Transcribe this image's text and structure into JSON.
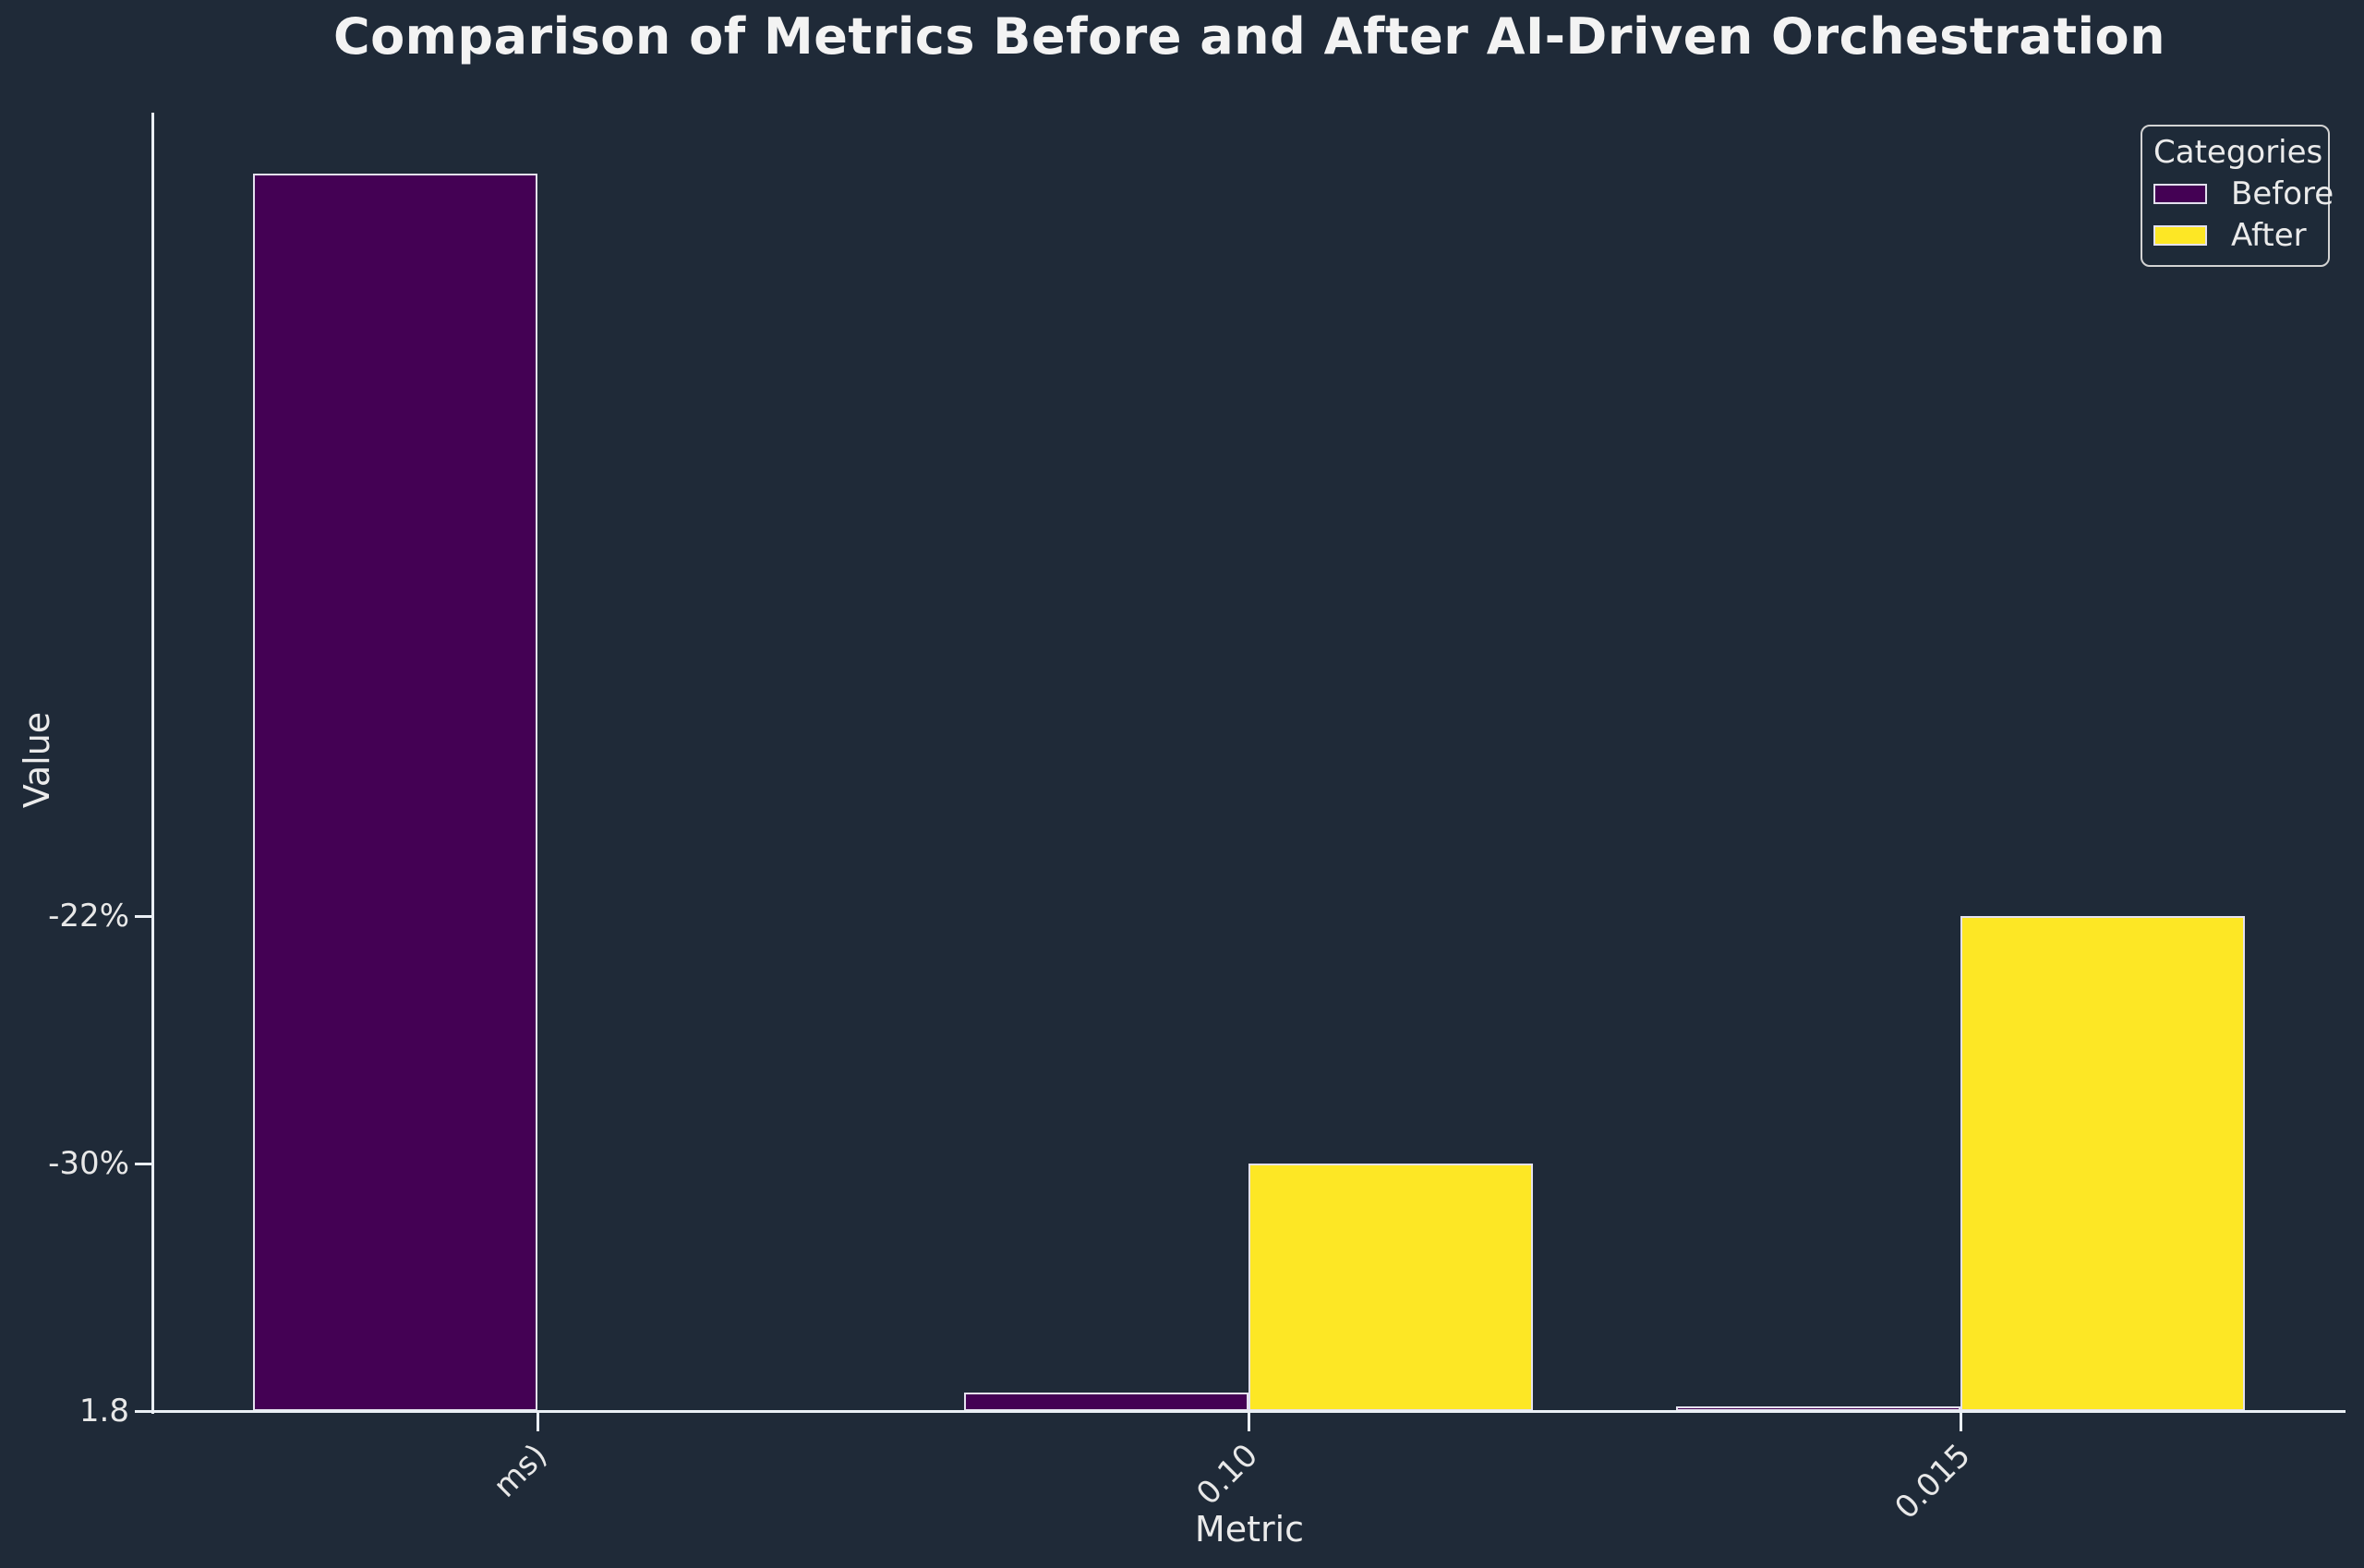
{
  "title": "Comparison of Metrics Before and After AI-Driven Orchestration",
  "legend": {
    "title": "Categories",
    "entries": [
      {
        "label": "Before",
        "color": "#440154"
      },
      {
        "label": "After",
        "color": "#fde725"
      }
    ]
  },
  "colors": {
    "background": "#1f2a38",
    "text": "#ebebeb",
    "axis_line": "#eaeff5",
    "bar_edge": "#e4e1ee",
    "before": "#440154",
    "after": "#fde725"
  },
  "chart_data": {
    "type": "bar",
    "title": "Comparison of Metrics Before and After AI-Driven Orchestration",
    "xlabel": "Metric",
    "ylabel": "Value",
    "categories": [
      "ms)",
      "0.10",
      "0.015"
    ],
    "series": [
      {
        "name": "Before",
        "color": "#440154",
        "values": [
          5.0,
          0.075,
          0.02
        ]
      },
      {
        "name": "After",
        "color": "#fde725",
        "values": [
          0.0,
          1.0,
          2.0
        ]
      }
    ],
    "ytick_labels": [
      "1.8",
      "-30%",
      "-22%"
    ],
    "ytick_positions": [
      0,
      1,
      2
    ],
    "ylim": [
      0,
      5.25
    ],
    "grid": false,
    "legend_title": "Categories",
    "legend_position": "upper right"
  }
}
